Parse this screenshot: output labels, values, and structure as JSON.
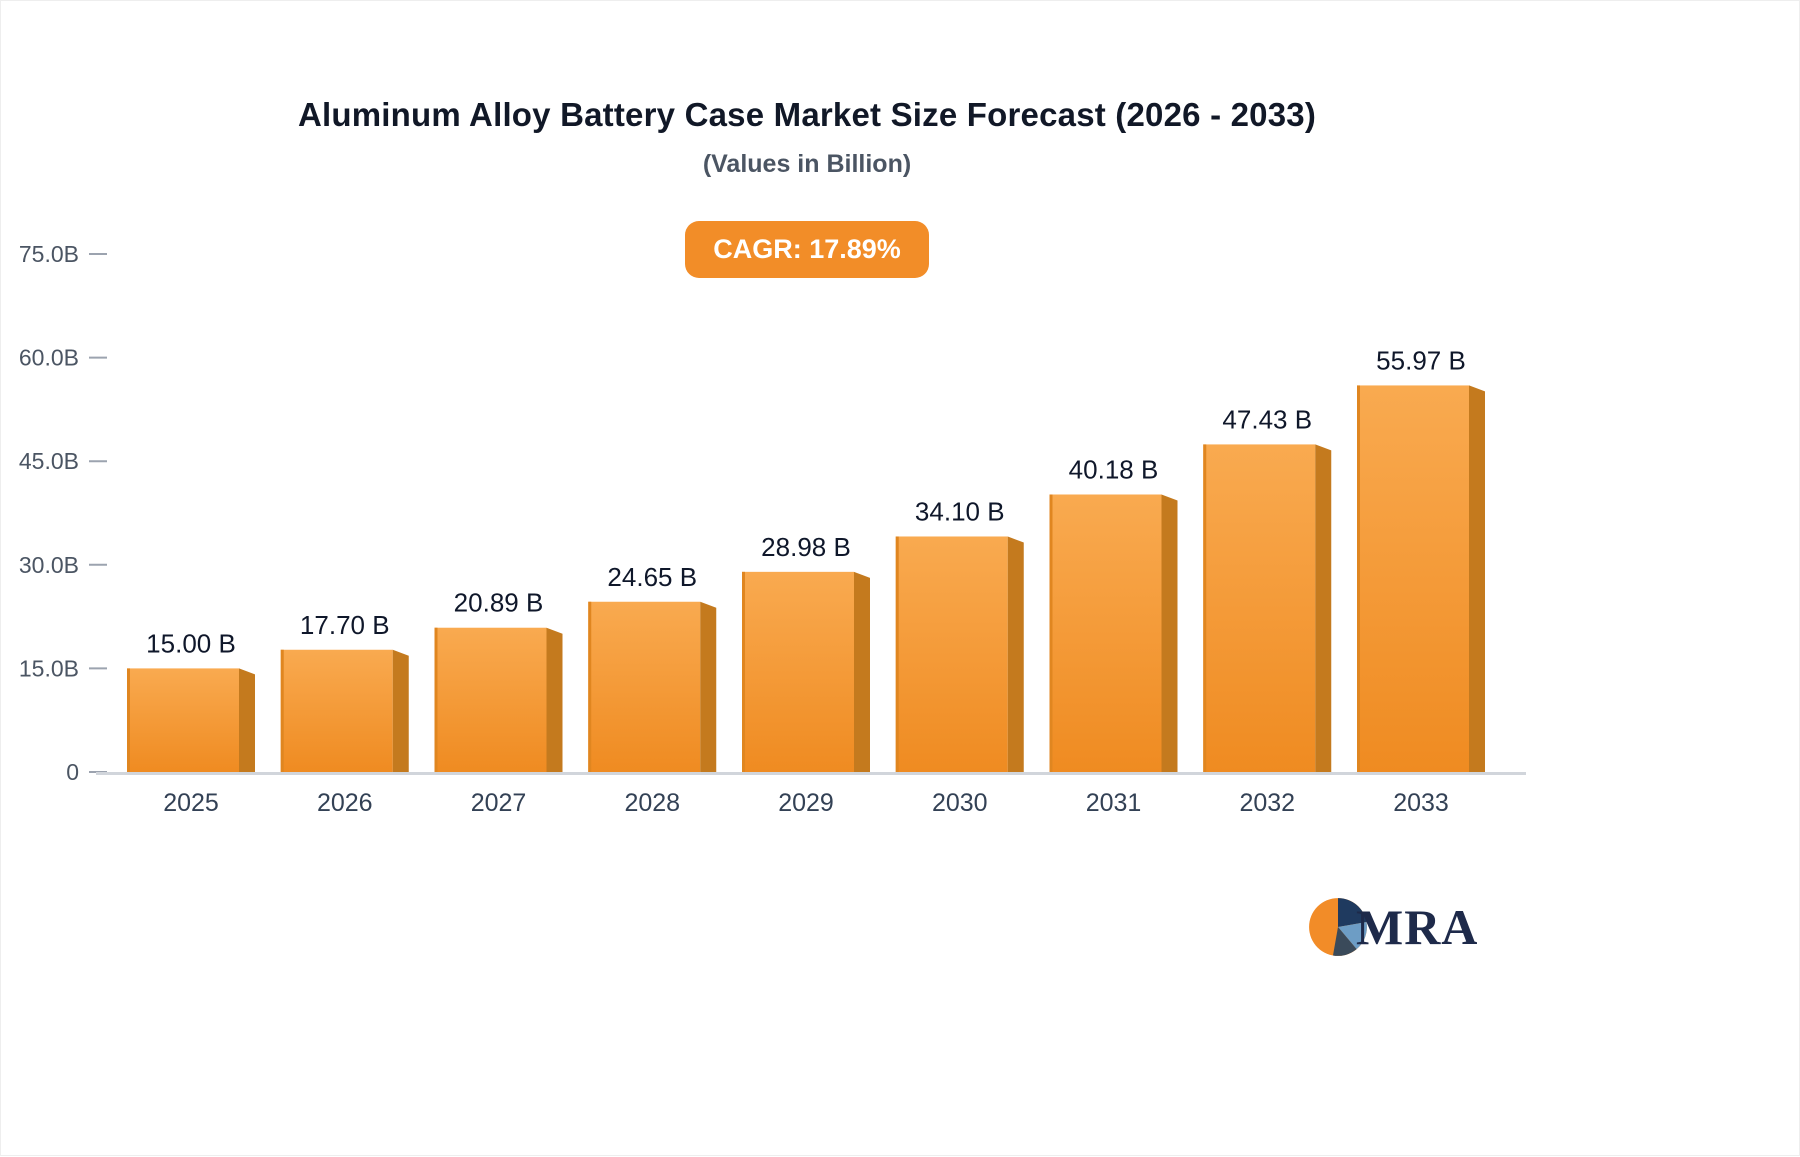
{
  "header": {
    "title": "Aluminum Alloy Battery Case Market Size Forecast (2026 - 2033)",
    "subtitle": "(Values in Billion)",
    "cagr_badge": "CAGR: 17.89%"
  },
  "chart_data": {
    "type": "bar",
    "title": "Aluminum Alloy Battery Case Market Size Forecast (2026 - 2033)",
    "subtitle": "(Values in Billion)",
    "cagr_percent": 17.89,
    "categories": [
      "2025",
      "2026",
      "2027",
      "2028",
      "2029",
      "2030",
      "2031",
      "2032",
      "2033"
    ],
    "values": [
      15.0,
      17.7,
      20.89,
      24.65,
      28.98,
      34.1,
      40.18,
      47.43,
      55.97
    ],
    "value_labels": [
      "15.00 B",
      "17.70 B",
      "20.89 B",
      "24.65 B",
      "28.98 B",
      "34.10 B",
      "40.18 B",
      "47.43 B",
      "55.97 B"
    ],
    "xlabel": "",
    "ylabel": "",
    "ylim": [
      0,
      75
    ],
    "yticks": [
      0,
      15,
      30,
      45,
      60,
      75
    ],
    "ytick_labels": [
      "0",
      "15.0B",
      "30.0B",
      "45.0B",
      "60.0B",
      "75.0B"
    ],
    "grid": false,
    "legend": "none",
    "colors": {
      "bar_top": "#F9AA50",
      "bar_bottom": "#EF8B21",
      "bar_side": "#C47A1E",
      "bar_left_edge": "#E08620",
      "axis_line": "#d1d5db",
      "tick": "#9ca3af",
      "tick_label": "#4b5563",
      "value_label": "#0f172a",
      "year_label": "#334155",
      "badge": "#F28D28"
    }
  },
  "logo": {
    "text": "MRA"
  }
}
